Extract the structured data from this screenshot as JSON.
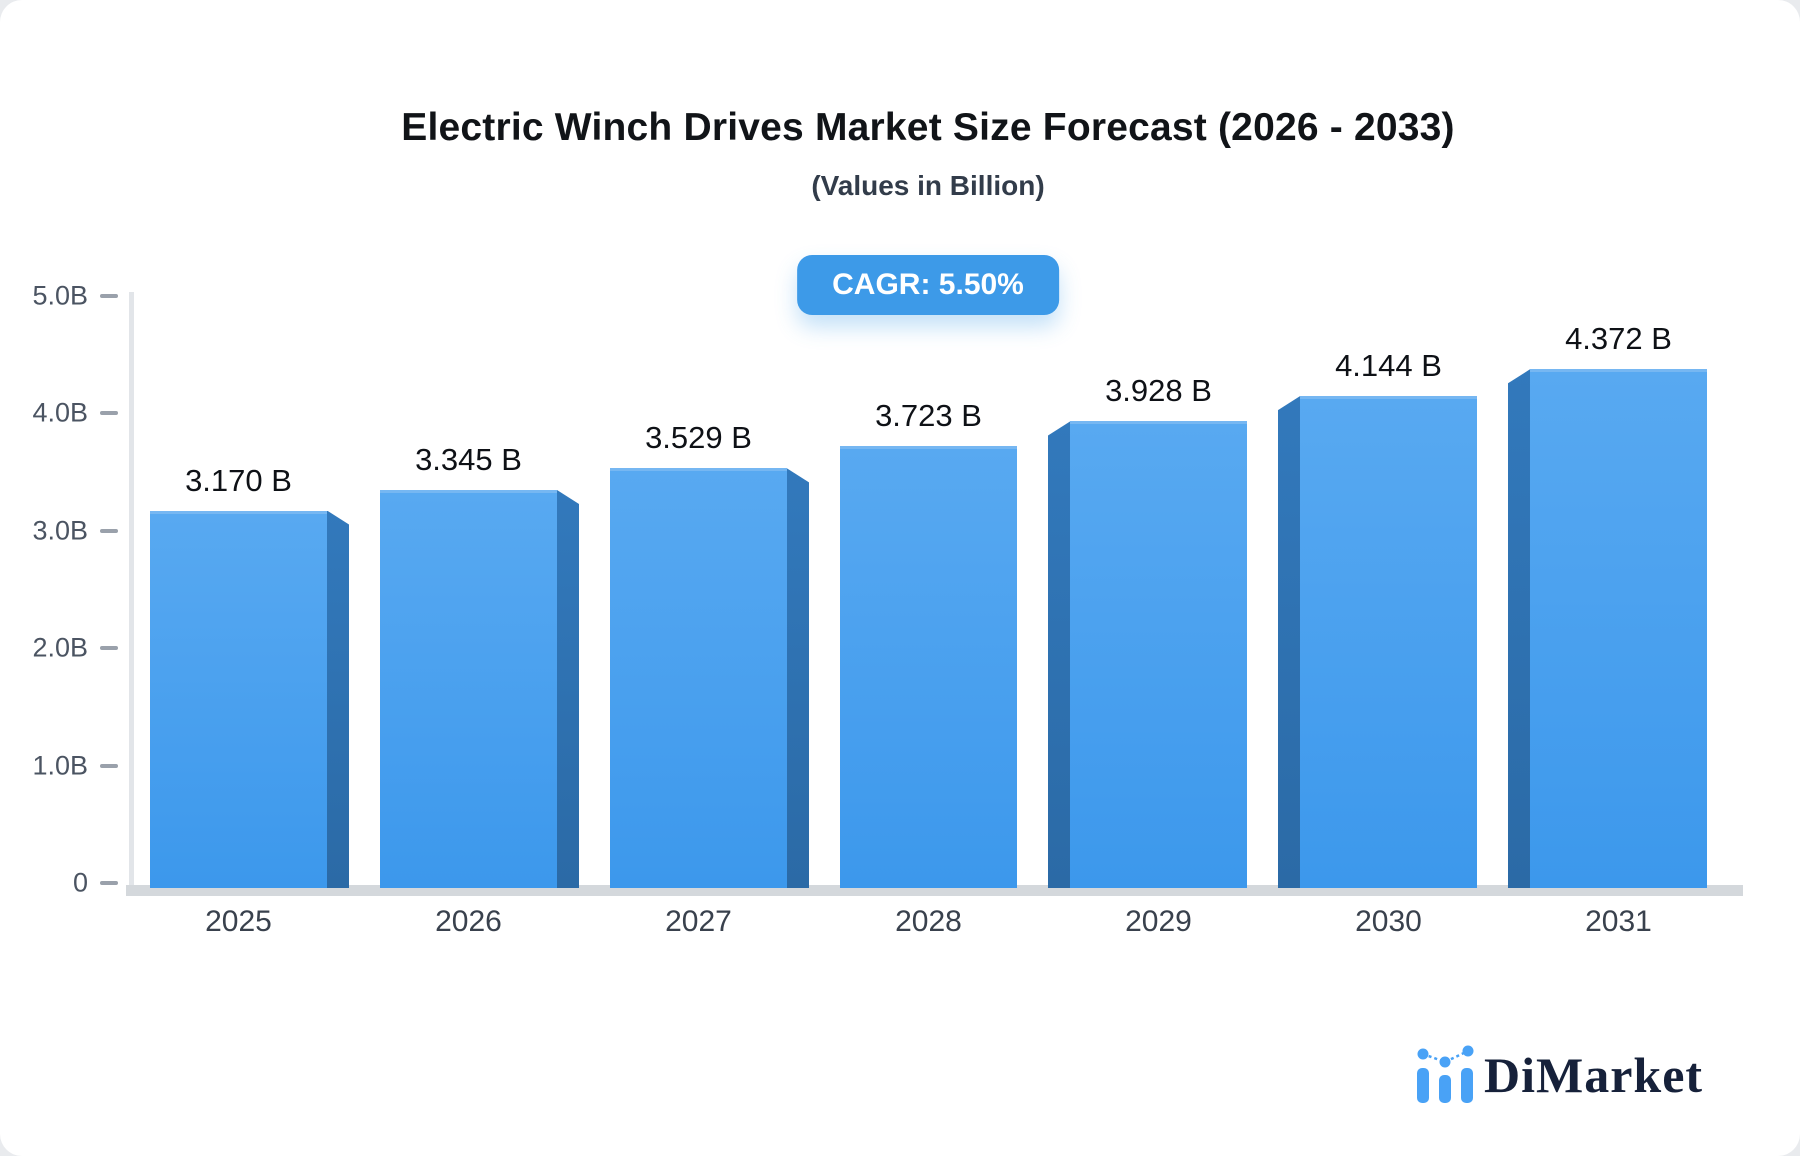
{
  "header": {
    "title": "Electric Winch Drives Market Size Forecast (2026 - 2033)",
    "subtitle": "(Values in Billion)"
  },
  "badge": {
    "label": "CAGR: 5.50%"
  },
  "chart_data": {
    "type": "bar",
    "title": "Electric Winch Drives Market Size Forecast (2026 - 2033)",
    "subtitle": "(Values in Billion)",
    "cagr": "5.50%",
    "categories": [
      "2025",
      "2026",
      "2027",
      "2028",
      "2029",
      "2030",
      "2031"
    ],
    "values": [
      3.17,
      3.345,
      3.529,
      3.723,
      3.928,
      4.144,
      4.372
    ],
    "value_labels": [
      "3.170 B",
      "3.345 B",
      "3.529 B",
      "3.723 B",
      "3.928 B",
      "4.144 B",
      "4.372 B"
    ],
    "unit": "Billion",
    "xlabel": "",
    "ylabel": "",
    "ylim": [
      0,
      5
    ],
    "y_ticks": [
      {
        "value": 0,
        "label": "0"
      },
      {
        "value": 1.0,
        "label": "1.0B"
      },
      {
        "value": 2.0,
        "label": "2.0B"
      },
      {
        "value": 3.0,
        "label": "3.0B"
      },
      {
        "value": 4.0,
        "label": "4.0B"
      },
      {
        "value": 5.0,
        "label": "5.0B"
      }
    ],
    "grid": false,
    "legend": false
  },
  "colors": {
    "bar_face_top": "#58a9f1",
    "bar_face_bottom": "#3c98ec",
    "bar_side": "#2e72b3",
    "badge_bg": "#3d9ae8",
    "badge_text": "#ffffff",
    "axis_line": "#e2e5e9",
    "baseline": "#d4d8dc",
    "logo_blue": "#49a2f6",
    "logo_navy": "#16213a"
  },
  "logo": {
    "text": "DiMarket",
    "icon": "bar-line-chart-icon"
  }
}
